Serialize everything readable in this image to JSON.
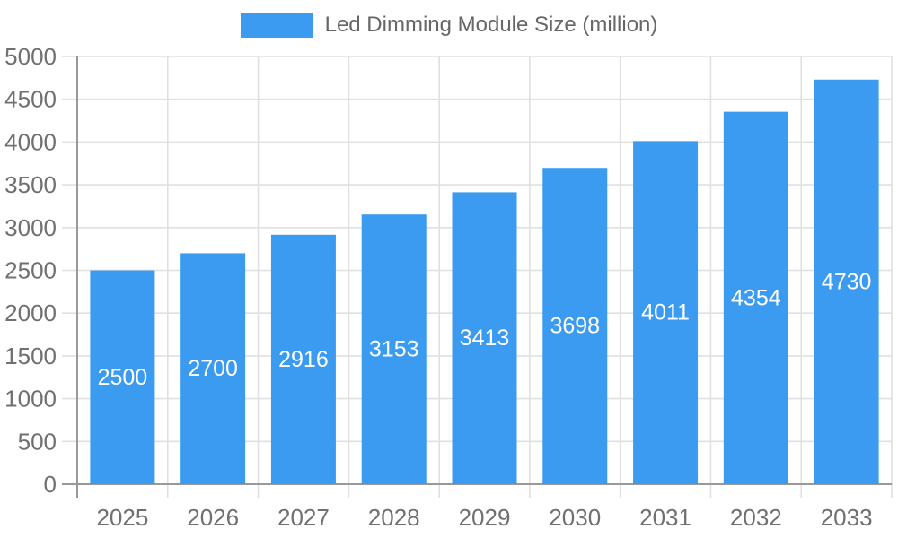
{
  "legend": {
    "label": "Led Dimming Module Size (million)"
  },
  "chart_data": {
    "type": "bar",
    "title": "Led Dimming Module Size (million)",
    "categories": [
      "2025",
      "2026",
      "2027",
      "2028",
      "2029",
      "2030",
      "2031",
      "2032",
      "2033"
    ],
    "series": [
      {
        "name": "Led Dimming Module Size (million)",
        "values": [
          2500,
          2700,
          2916,
          3153,
          3413,
          3698,
          4011,
          4354,
          4730
        ]
      }
    ],
    "data_labels_shown": true,
    "xlabel": "",
    "ylabel": "",
    "ylim": [
      0,
      5000
    ],
    "ytick_step": 500,
    "yticks": [
      0,
      500,
      1000,
      1500,
      2000,
      2500,
      3000,
      3500,
      4000,
      4500,
      5000
    ],
    "grid": true,
    "legend_position": "top-center",
    "colors": {
      "bar_fill": "#3B9BF0",
      "bar_value_label": "#ffffff",
      "grid_line": "#e0e0e0",
      "tick_mark": "#e0e0e0",
      "axis_border": "#999999",
      "tick_label_text": "#707070",
      "legend_text": "#666666",
      "background": "#ffffff"
    }
  }
}
